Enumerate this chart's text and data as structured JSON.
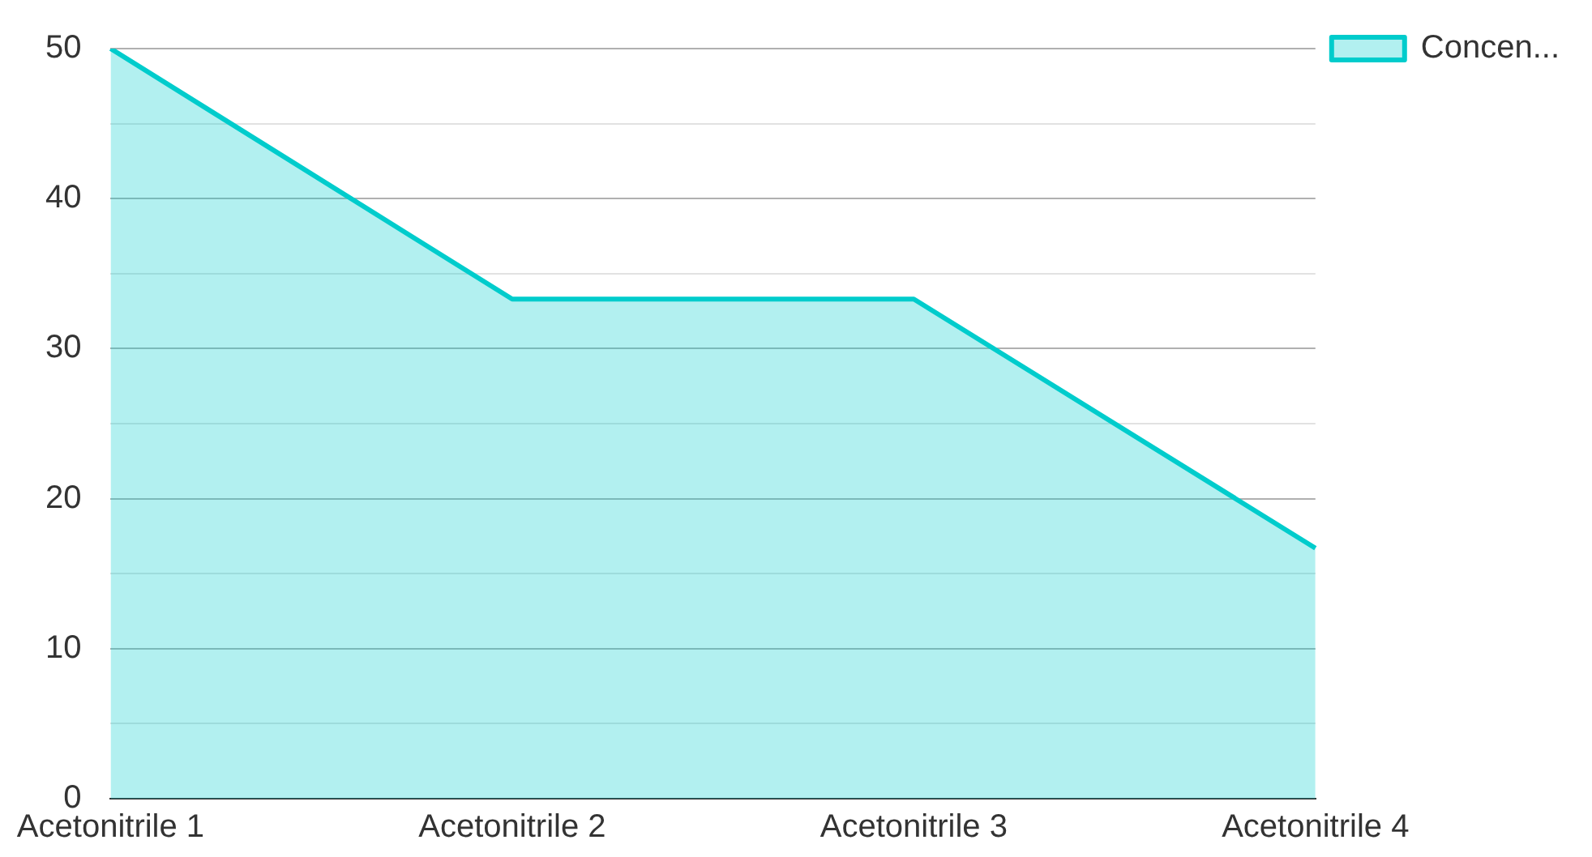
{
  "chart_data": {
    "type": "area",
    "categories": [
      "Acetonitrile 1",
      "Acetonitrile 2",
      "Acetonitrile 3",
      "Acetonitrile 4"
    ],
    "series": [
      {
        "name": "Concen...",
        "color": "#00cccc",
        "values": [
          50,
          33.3,
          33.3,
          16.7
        ]
      }
    ],
    "ylim": [
      0,
      50
    ],
    "yticks": [
      0,
      {
        "value": 5,
        "label": null
      },
      10,
      {
        "value": 15,
        "label": null
      },
      20,
      {
        "value": 25,
        "label": null
      },
      30,
      {
        "value": 35,
        "label": null
      },
      40,
      {
        "value": 45,
        "label": null
      },
      50
    ],
    "grid": "y",
    "legend": "top right",
    "marker": "none"
  }
}
